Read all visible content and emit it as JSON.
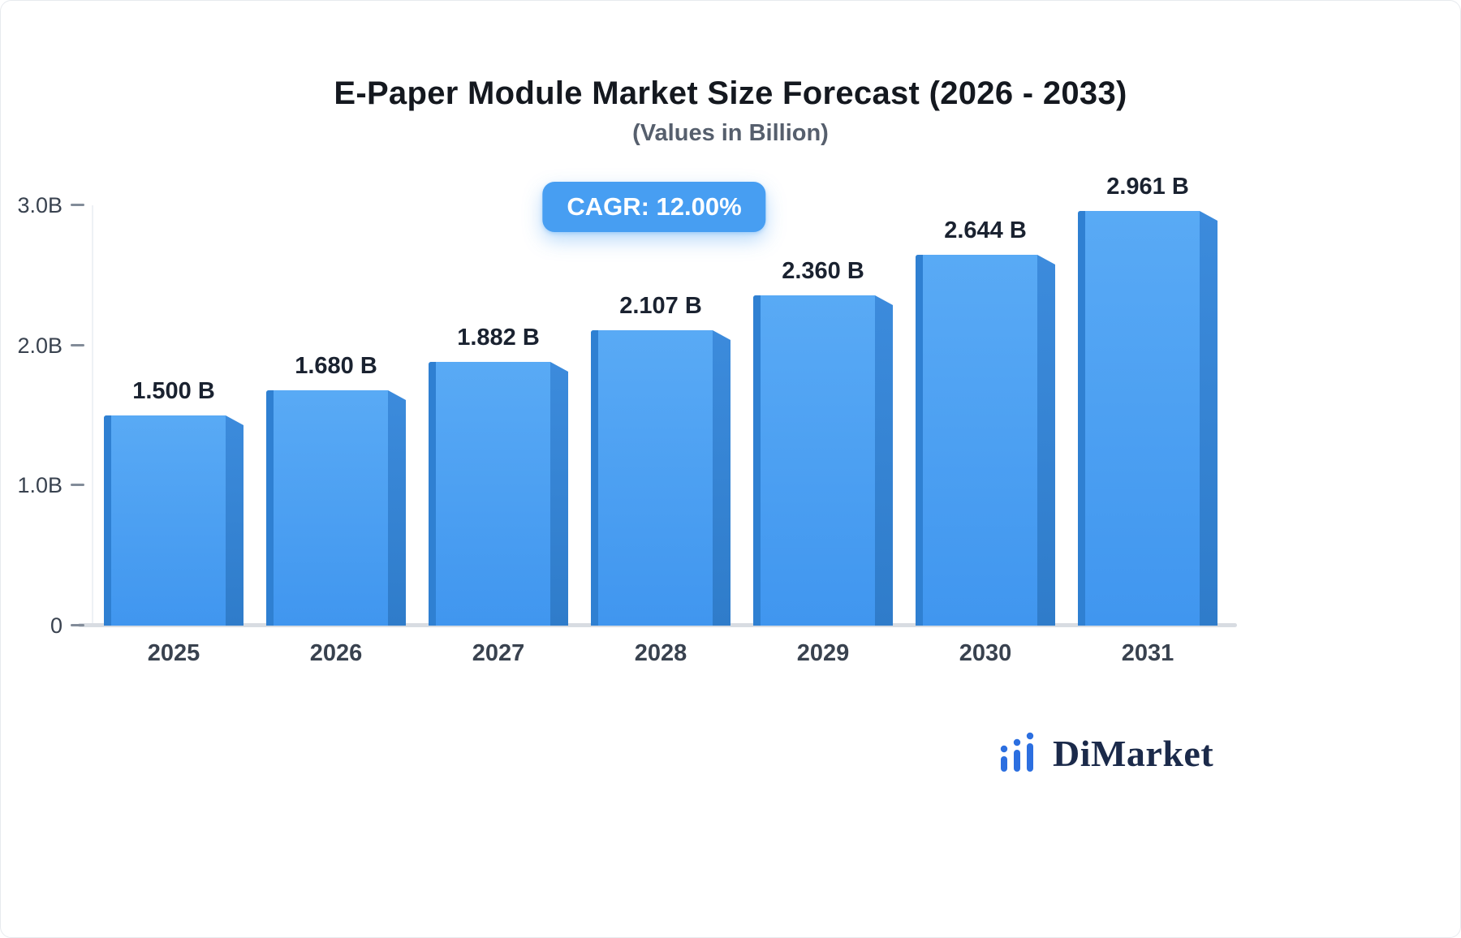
{
  "header": {
    "title": "E-Paper Module Market Size Forecast (2026 - 2033)",
    "subtitle": "(Values in Billion)"
  },
  "badge": {
    "label": "CAGR: 12.00%"
  },
  "chart_data": {
    "type": "bar",
    "title": "E-Paper Module Market Size Forecast (2026 - 2033)",
    "subtitle": "(Values in Billion)",
    "categories": [
      "2025",
      "2026",
      "2027",
      "2028",
      "2029",
      "2030",
      "2031"
    ],
    "values": [
      1.5,
      1.68,
      1.882,
      2.107,
      2.36,
      2.644,
      2.961
    ],
    "value_labels": [
      "1.500 B",
      "1.680 B",
      "1.882 B",
      "2.107 B",
      "2.360 B",
      "2.644 B",
      "2.961 B"
    ],
    "xlabel": "",
    "ylabel": "",
    "ylim": [
      0,
      3
    ],
    "yticks": [
      {
        "label": "0",
        "value": 0
      },
      {
        "label": "1.0B",
        "value": 1
      },
      {
        "label": "2.0B",
        "value": 2
      },
      {
        "label": "3.0B",
        "value": 3
      }
    ],
    "grid": false,
    "legend": false,
    "colors": {
      "front_top": "#59aaf5",
      "front_bottom": "#4096ef",
      "side_top": "#3c8bdc",
      "side_bottom": "#2f7cca",
      "left_edge": "#2f80d2",
      "accent": "#479ef2"
    }
  },
  "footer": {
    "brand": "DiMarket"
  }
}
